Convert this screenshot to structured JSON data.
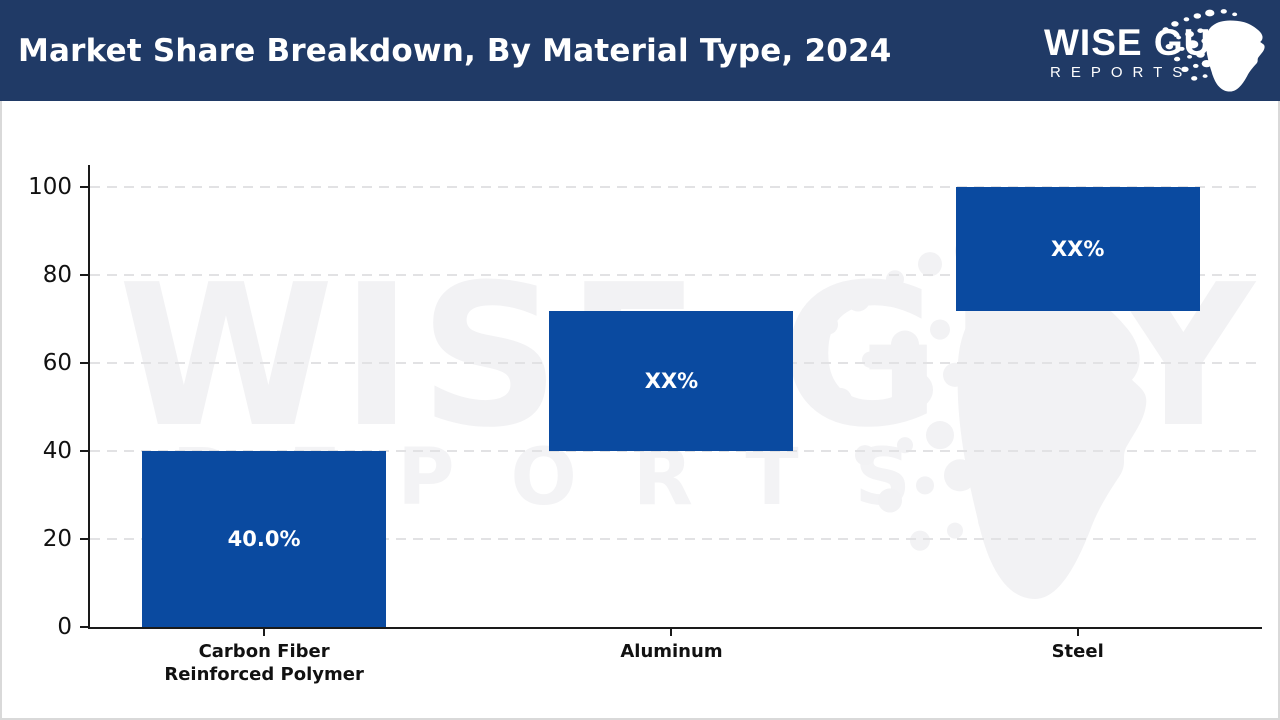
{
  "header": {
    "title": "Market Share Breakdown, By Material Type, 2024",
    "background_color": "#203a66",
    "logo": {
      "primary": "WISE GUY",
      "secondary": "REPORTS"
    }
  },
  "watermark": {
    "primary": "WISE GUY",
    "secondary": "REPORTS"
  },
  "chart_data": {
    "type": "bar",
    "subtype": "floating-waterfall-segments",
    "title": "Market Share Breakdown, By Material Type, 2024",
    "categories": [
      [
        "Carbon Fiber",
        "Reinforced Polymer"
      ],
      [
        "Aluminum"
      ],
      [
        "Steel"
      ]
    ],
    "bars": [
      {
        "category": "Carbon Fiber Reinforced Polymer",
        "start": 0,
        "end": 40,
        "label": "40.0%"
      },
      {
        "category": "Aluminum",
        "start": 40,
        "end": 71.8,
        "label": "XX%"
      },
      {
        "category": "Steel",
        "start": 71.8,
        "end": 100,
        "label": "XX%"
      }
    ],
    "ylim": [
      0,
      105
    ],
    "yticks": [
      0,
      20,
      40,
      60,
      80,
      100
    ],
    "grid": {
      "axis": "y",
      "style": "dashed",
      "color": "#e2e2e4"
    },
    "legend": null,
    "bar_color": "#0a4aa0",
    "bar_label_color": "#ffffff",
    "axis_color": "#1a1a1a"
  }
}
